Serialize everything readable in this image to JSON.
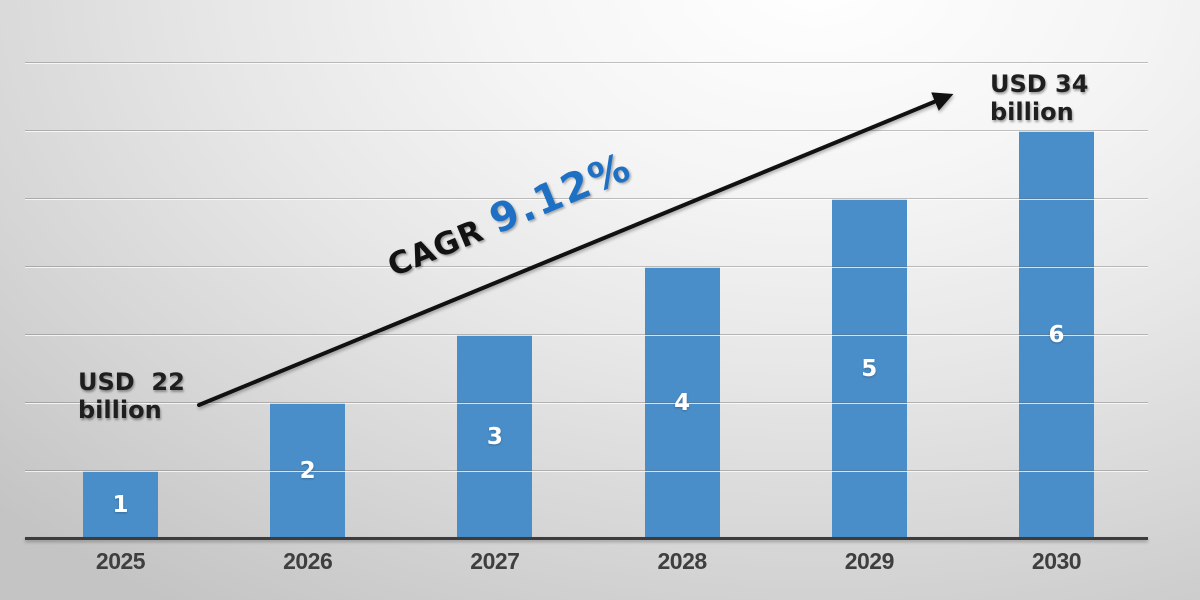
{
  "chart_data": {
    "type": "bar",
    "title": "",
    "categories": [
      "2025",
      "2026",
      "2027",
      "2028",
      "2029",
      "2030"
    ],
    "values": [
      1,
      2,
      3,
      4,
      5,
      6
    ],
    "bar_labels": [
      "1",
      "2",
      "3",
      "4",
      "5",
      "6"
    ],
    "xlabel": "",
    "ylabel": "",
    "ylim": [
      0,
      7
    ],
    "grid": "horizontal",
    "gridline_count": 7,
    "legend": "none",
    "bar_color": "#4A8EC9",
    "bar_label_color": "#FFFFFF",
    "axis_line_color": "#3C3C3C",
    "tick_label_color": "#3F3F3F"
  },
  "annotations": {
    "start_value": "USD  22\nbillion",
    "end_value": "USD 34\nbillion",
    "cagr": {
      "label": "CAGR",
      "value": "9.12%",
      "label_color": "#121212",
      "value_color": "#1E70C4"
    },
    "trend_arrow_color": "#111111"
  }
}
